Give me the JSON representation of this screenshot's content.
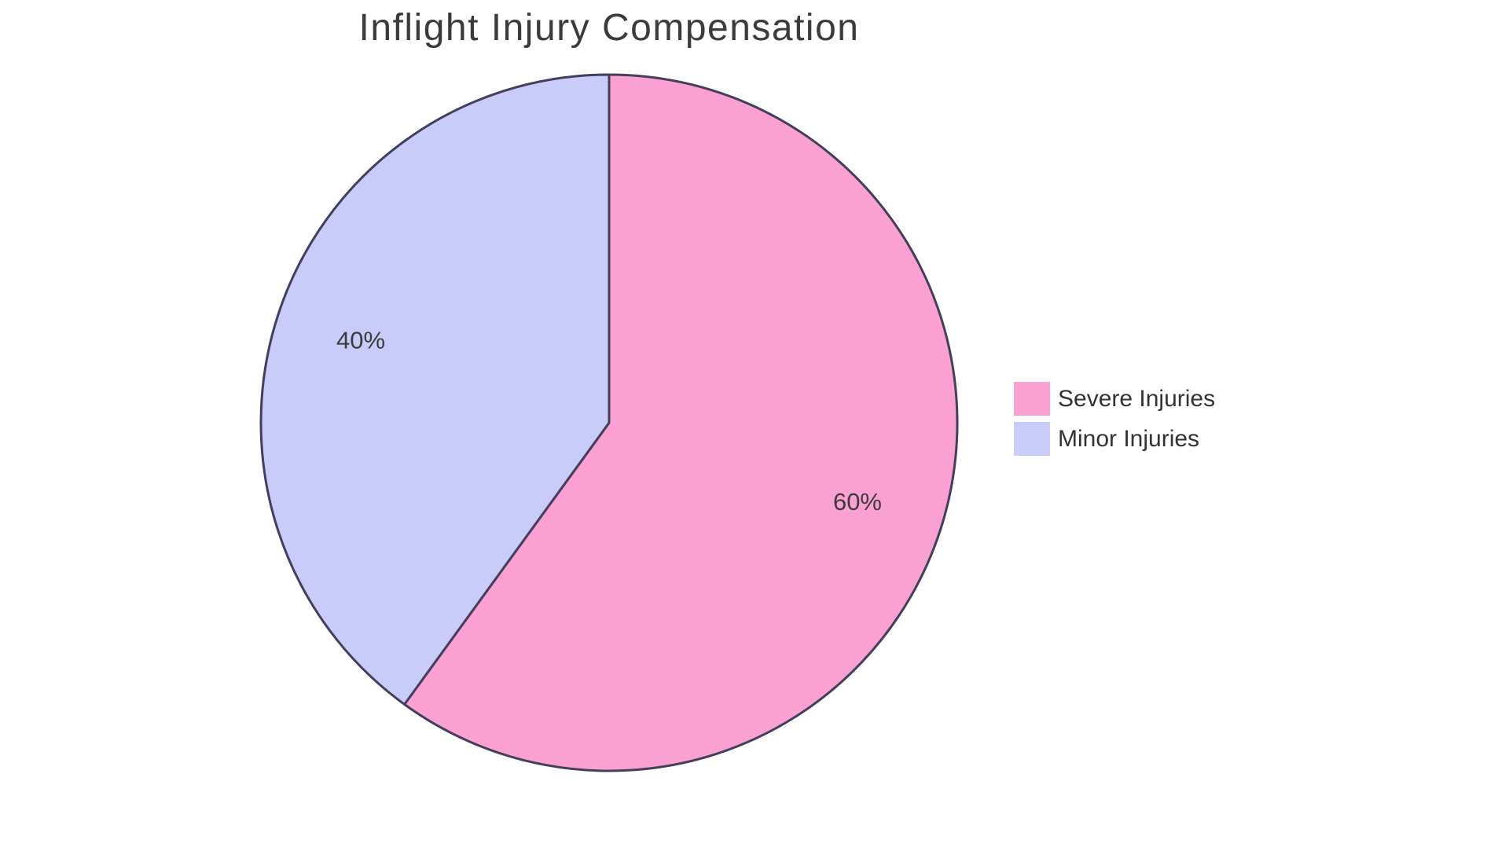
{
  "chart_data": {
    "type": "pie",
    "title": "Inflight Injury Compensation",
    "categories": [
      "Severe Injuries",
      "Minor Injuries"
    ],
    "values": [
      60,
      40
    ],
    "slices": [
      {
        "label": "Severe Injuries",
        "value": 60,
        "percent_label": "60%",
        "color": "#FAA0D2"
      },
      {
        "label": "Minor Injuries",
        "value": 40,
        "percent_label": "40%",
        "color": "#C9CCF8"
      }
    ],
    "start_angle_deg": 0,
    "direction": "clockwise",
    "slice_border_color": "#433E5C",
    "slice_border_width": 3,
    "percent_label_color": "#3B3B3B",
    "percent_label_font_size": 31,
    "title_color": "#3B3B3B",
    "legend_position": "right",
    "background": "#FFFFFF",
    "grid": false
  }
}
